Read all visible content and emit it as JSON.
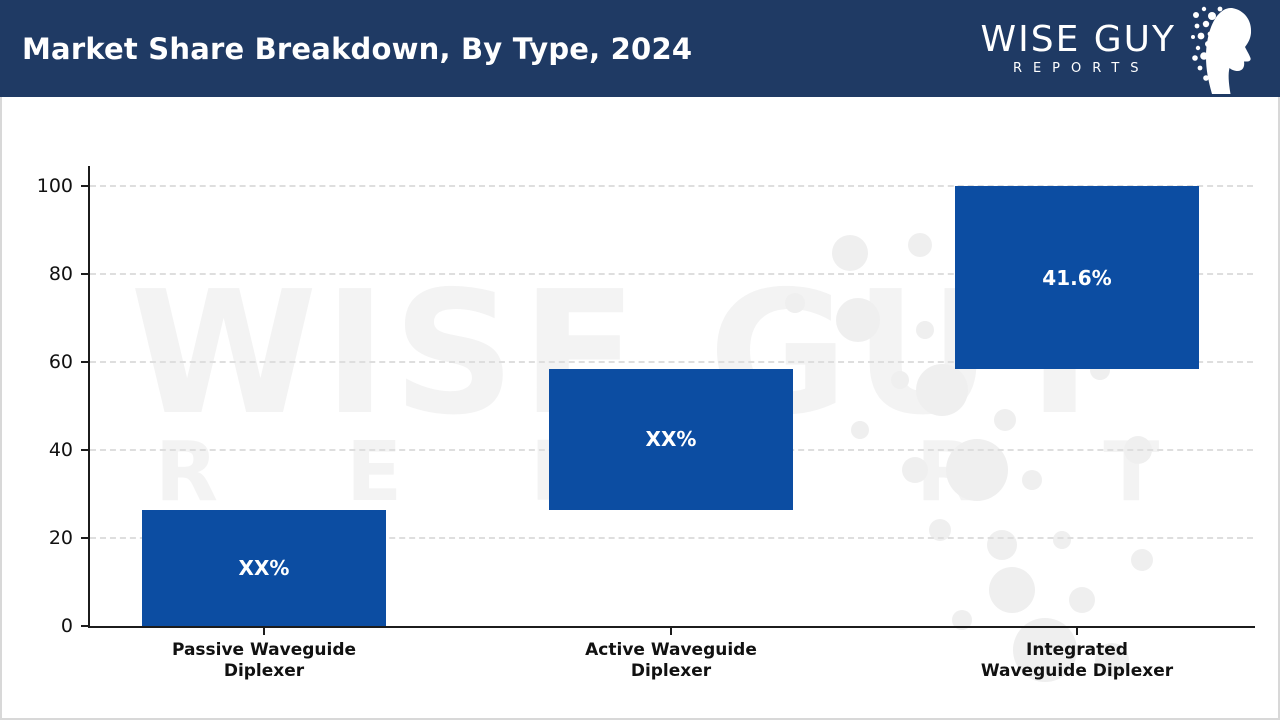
{
  "header": {
    "title": "Market Share Breakdown, By Type, 2024",
    "logo": {
      "name": "WISE GUY",
      "subtitle": "REPORTS",
      "face_icon": "dotted-face-profile"
    }
  },
  "watermark": {
    "line1": "WISE GUY",
    "line2": "REPORTS",
    "dots_icon": "dotted-face-profile"
  },
  "colors": {
    "header_bg": "#1f3a64",
    "bar": "#0c4da2",
    "grid": "#dedede",
    "axis": "#1c1c1c",
    "watermark": "#f3f3f3",
    "bar_label": "#ffffff",
    "title_text": "#ffffff"
  },
  "chart_data": {
    "type": "bar",
    "subtype": "waterfall",
    "title": "Market Share Breakdown, By Type, 2024",
    "xlabel": "",
    "ylabel": "",
    "ylim": [
      0,
      105
    ],
    "yticks": [
      0,
      20,
      40,
      60,
      80,
      100
    ],
    "grid": "horizontal-dashed",
    "legend": "none",
    "bar_color": "#0c4da2",
    "categories": [
      [
        "Passive Waveguide",
        "Diplexer"
      ],
      [
        "Active Waveguide",
        "Diplexer"
      ],
      [
        "Integrated",
        "Waveguide Diplexer"
      ]
    ],
    "bars": [
      {
        "category": "Passive Waveguide Diplexer",
        "start": 0,
        "end": 26.4,
        "value": 26.4,
        "label": "XX%"
      },
      {
        "category": "Active Waveguide Diplexer",
        "start": 26.4,
        "end": 58.4,
        "value": 32.0,
        "label": "XX%"
      },
      {
        "category": "Integrated Waveguide Diplexer",
        "start": 58.4,
        "end": 100,
        "value": 41.6,
        "label": "41.6%"
      }
    ]
  }
}
